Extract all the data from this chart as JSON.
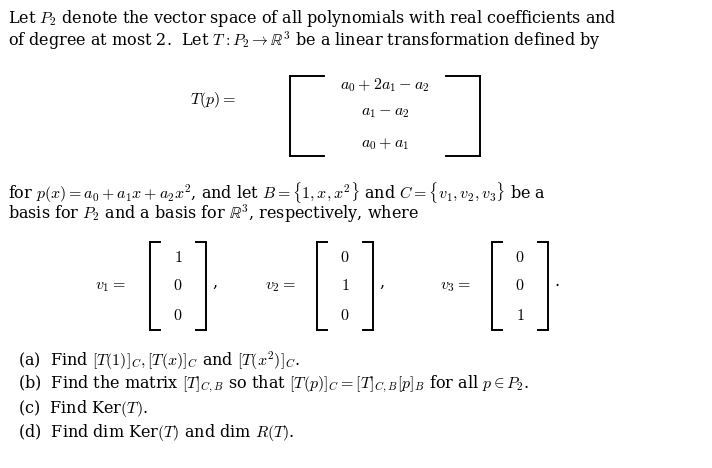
{
  "bg_color": "#ffffff",
  "text_color": "#000000",
  "figsize": [
    7.12,
    4.68
  ],
  "dpi": 100,
  "line1": "Let $P_2$ denote the vector space of all polynomials with real coefficients and",
  "line2": "of degree at most 2.  Let $T : P_2 \\rightarrow \\mathbb{R}^3$ be a linear transformation defined by",
  "line3": "for $p(x) = a_0 + a_1 x + a_2 x^2$, and let $B = \\{1, x, x^2\\}$ and $C = \\{v_1, v_2, v_3\\}$ be a",
  "line4": "basis for $P_2$ and a basis for $\\mathbb{R}^3$, respectively, where",
  "line_a": "(a)  Find $[T(1)]_C, [T(x)]_C$ and $[T(x^2)]_C$.",
  "line_b": "(b)  Find the matrix $[T]_{C,B}$ so that $[T(p)]_C = [T]_{C,B}[p]_B$ for all $p \\in P_2$.",
  "line_c": "(c)  Find Ker$(T)$.",
  "line_d": "(d)  Find dim Ker$(T)$ and dim $R(T)$.",
  "Tp_eq": "$T(p) =$",
  "Tp_row1": "$a_0 + 2a_1 - a_2$",
  "Tp_row2": "$a_1 - a_2$",
  "Tp_row3": "$a_0 + a_1$",
  "v1_label": "$v_1 =$",
  "v1_r1": "$1$",
  "v1_r2": "$0$",
  "v1_r3": "$0$",
  "v2_label": "$v_2 =$",
  "v2_r1": "$0$",
  "v2_r2": "$1$",
  "v2_r3": "$0$",
  "v3_label": "$v_3 =$",
  "v3_r1": "$0$",
  "v3_r2": "$0$",
  "v3_r3": "$1$",
  "fs": 11.5
}
